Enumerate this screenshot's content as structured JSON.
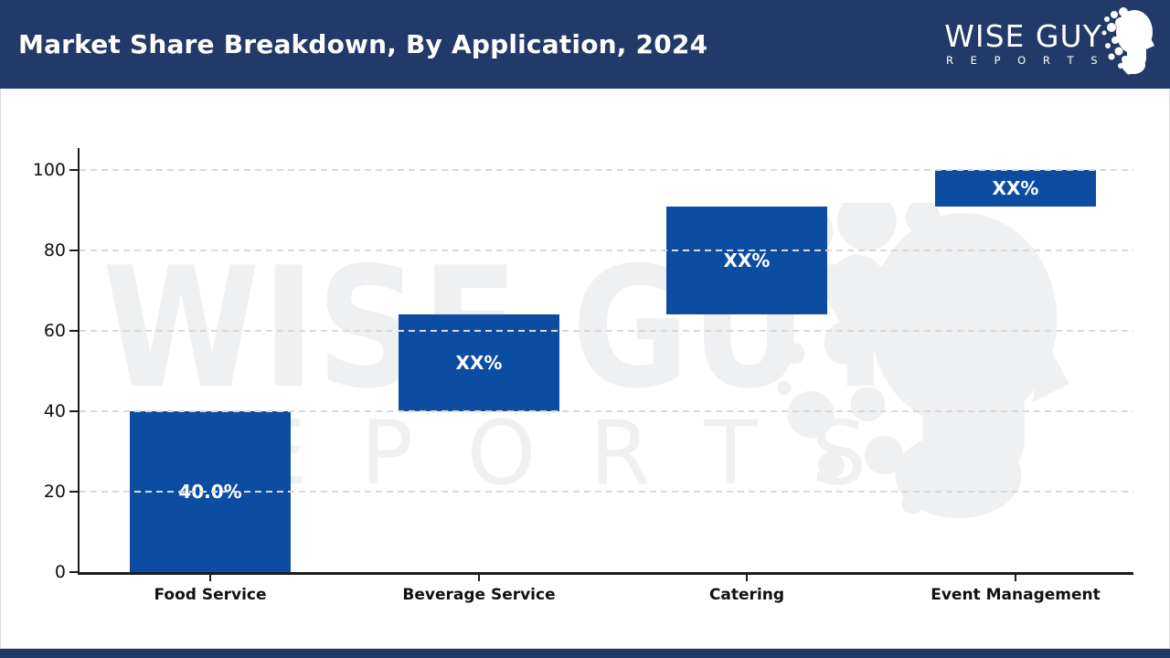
{
  "header": {
    "title": "Market Share Breakdown, By Application, 2024",
    "logo": {
      "wordmark": "WISE GUY",
      "subtext": "R E P O R T S"
    }
  },
  "watermark": {
    "wordmark": "WISE GUY",
    "subtext": "R E P O R T S"
  },
  "chart_data": {
    "type": "bar",
    "subtype": "waterfall",
    "title": "Market Share Breakdown, By Application, 2024",
    "categories": [
      "Food Service",
      "Beverage Service",
      "Catering",
      "Event Management"
    ],
    "series": [
      {
        "name": "Market share (%)",
        "segment_start": [
          0,
          40,
          64,
          91
        ],
        "segment_end": [
          40,
          64,
          91,
          100
        ],
        "increments": [
          40,
          24,
          27,
          9
        ]
      }
    ],
    "bar_labels": [
      "40.0%",
      "XX%",
      "XX%",
      "XX%"
    ],
    "xlabel": "",
    "ylabel": "",
    "ylim": [
      0,
      105
    ],
    "yticks": [
      0,
      20,
      40,
      60,
      80,
      100
    ],
    "grid": "horizontal-dashed",
    "legend": "none",
    "bar_color": "#0c4da1"
  },
  "colors": {
    "header_bg": "#223a6a",
    "footer_bg": "#223a6a",
    "bar": "#0c4da1",
    "gridline": "#d9d9d9",
    "axis": "#1c1c1c",
    "watermark": "#eff0f2",
    "page_bg": "#ffffff"
  }
}
